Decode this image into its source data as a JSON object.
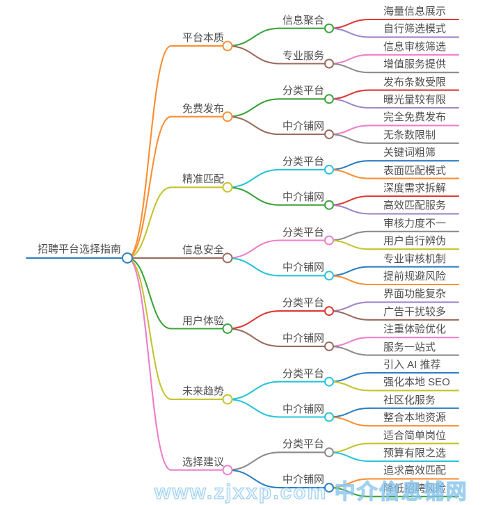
{
  "watermark": "www.zjxxp.com 中介信息铺网",
  "colors": {
    "blue": "#2e7fc2",
    "orange": "#fb8f35",
    "green": "#3ba43b",
    "red": "#dd3a33",
    "purple": "#a186c9",
    "brown": "#9b6b5e",
    "pink": "#ef7fcb",
    "gray": "#8c8c8c",
    "olive": "#c3c42e",
    "cyan": "#29c4d8",
    "text": "#4f4f4f"
  },
  "mindmap": {
    "root": {
      "label": "招聘平台选择指南",
      "color": "blue"
    },
    "branches": [
      {
        "label": "平台本质",
        "color": "orange",
        "children": [
          {
            "label": "信息聚合",
            "color": "green",
            "leaves": [
              {
                "label": "海量信息展示",
                "color": "red"
              },
              {
                "label": "自行筛选模式",
                "color": "purple"
              }
            ]
          },
          {
            "label": "专业服务",
            "color": "brown",
            "leaves": [
              {
                "label": "信息审核筛选",
                "color": "pink"
              },
              {
                "label": "增值服务提供",
                "color": "gray"
              }
            ]
          }
        ]
      },
      {
        "label": "免费发布",
        "color": "orange",
        "children": [
          {
            "label": "分类平台",
            "color": "green",
            "leaves": [
              {
                "label": "发布条数受限",
                "color": "red"
              },
              {
                "label": "曝光量较有限",
                "color": "purple"
              }
            ]
          },
          {
            "label": "中介铺网",
            "color": "brown",
            "leaves": [
              {
                "label": "完全免费发布",
                "color": "pink"
              },
              {
                "label": "无条数限制",
                "color": "gray"
              }
            ]
          }
        ]
      },
      {
        "label": "精准匹配",
        "color": "olive",
        "children": [
          {
            "label": "分类平台",
            "color": "cyan",
            "leaves": [
              {
                "label": "关键词粗筛",
                "color": "blue"
              },
              {
                "label": "表面匹配模式",
                "color": "orange"
              }
            ]
          },
          {
            "label": "中介铺网",
            "color": "green",
            "leaves": [
              {
                "label": "深度需求拆解",
                "color": "red"
              },
              {
                "label": "高效匹配服务",
                "color": "purple"
              }
            ]
          }
        ]
      },
      {
        "label": "信息安全",
        "color": "brown",
        "children": [
          {
            "label": "分类平台",
            "color": "pink",
            "leaves": [
              {
                "label": "审核力度不一",
                "color": "gray"
              },
              {
                "label": "用户自行辨伪",
                "color": "olive"
              }
            ]
          },
          {
            "label": "中介铺网",
            "color": "cyan",
            "leaves": [
              {
                "label": "专业审核机制",
                "color": "blue"
              },
              {
                "label": "提前规避风险",
                "color": "orange"
              }
            ]
          }
        ]
      },
      {
        "label": "用户体验",
        "color": "green",
        "children": [
          {
            "label": "分类平台",
            "color": "red",
            "leaves": [
              {
                "label": "界面功能复杂",
                "color": "purple"
              },
              {
                "label": "广告干扰较多",
                "color": "brown"
              }
            ]
          },
          {
            "label": "中介铺网",
            "color": "brown",
            "leaves": [
              {
                "label": "注重体验优化",
                "color": "pink"
              },
              {
                "label": "服务一站式",
                "color": "gray"
              }
            ]
          }
        ]
      },
      {
        "label": "未来趋势",
        "color": "olive",
        "children": [
          {
            "label": "分类平台",
            "color": "cyan",
            "leaves": [
              {
                "label": "引入 AI 推荐",
                "color": "blue"
              },
              {
                "label": "强化本地 SEO",
                "color": "olive"
              }
            ]
          },
          {
            "label": "中介铺网",
            "color": "cyan",
            "leaves": [
              {
                "label": "社区化服务",
                "color": "blue"
              },
              {
                "label": "整合本地资源",
                "color": "orange"
              }
            ]
          }
        ]
      },
      {
        "label": "选择建议",
        "color": "pink",
        "children": [
          {
            "label": "分类平台",
            "color": "gray",
            "leaves": [
              {
                "label": "适合简单岗位",
                "color": "olive"
              },
              {
                "label": "预算有限之选",
                "color": "cyan"
              }
            ]
          },
          {
            "label": "中介铺网",
            "color": "blue",
            "leaves": [
              {
                "label": "追求高效匹配",
                "color": "orange"
              },
              {
                "label": "降低招聘风险",
                "color": "green"
              }
            ]
          }
        ]
      }
    ]
  }
}
